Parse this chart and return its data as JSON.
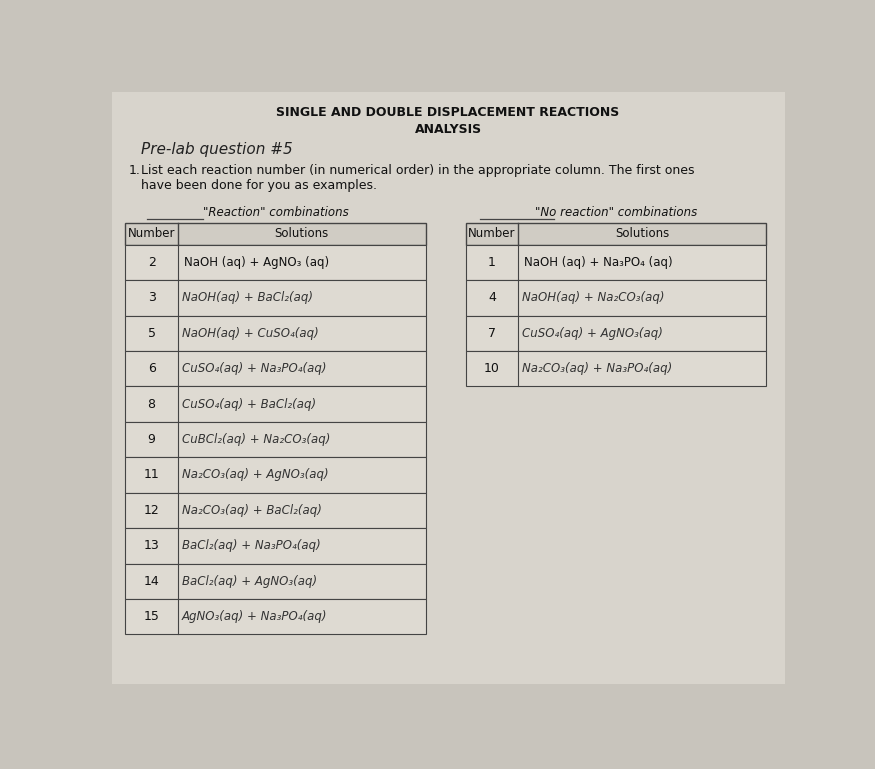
{
  "title": "SINGLE AND DOUBLE DISPLACEMENT REACTIONS",
  "subtitle": "ANALYSIS",
  "handwritten_label": "Pre-lab question #5",
  "instruction_number": "1.",
  "instruction_line1": "List each reaction number (in numerical order) in the appropriate column. The first ones",
  "instruction_line2": "have been done for you as examples.",
  "left_table_title": "\"Reaction\" combinations",
  "right_table_title": "\"No reaction\" combinations",
  "left_col_headers": [
    "Number",
    "Solutions"
  ],
  "right_col_headers": [
    "Number",
    "Solutions"
  ],
  "left_rows": [
    [
      "2",
      "NaOH (aq) + AgNO₃ (aq)"
    ],
    [
      "3",
      "NaOH(aq) + BaCl₂(aq)"
    ],
    [
      "5",
      "NaOH(aq) + CuSO₄(aq)"
    ],
    [
      "6",
      "CuSO₄(aq) + Na₃PO₄(aq)"
    ],
    [
      "8",
      "CuSO₄(aq) + BaCl₂(aq)"
    ],
    [
      "9",
      "CuBCl₂(aq) + Na₂CO₃(aq)"
    ],
    [
      "11",
      "Na₂CO₃(aq) + AgNO₃(aq)"
    ],
    [
      "12",
      "Na₂CO₃(aq) + BaCl₂(aq)"
    ],
    [
      "13",
      "BaCl₂(aq) + Na₃PO₄(aq)"
    ],
    [
      "14",
      "BaCl₂(aq) + AgNO₃(aq)"
    ],
    [
      "15",
      "AgNO₃(aq) + Na₃PO₄(aq)"
    ]
  ],
  "right_rows": [
    [
      "1",
      "NaOH (aq) + Na₃PO₄ (aq)"
    ],
    [
      "4",
      "NaOH(aq) + Na₂CO₃(aq)"
    ],
    [
      "7",
      "CuSO₄(aq) + AgNO₃(aq)"
    ],
    [
      "10",
      "Na₂CO₃(aq) + Na₃PO₄(aq)"
    ]
  ],
  "bg_color": "#c8c4bc",
  "paper_color": "#d8d4cc",
  "table_cell_color": "#dedad2",
  "header_cell_color": "#d0ccc4",
  "line_color": "#444444",
  "text_color": "#111111",
  "handwritten_color": "#222222",
  "printed_row1_color": "#111111",
  "handwritten_row_color": "#333333"
}
